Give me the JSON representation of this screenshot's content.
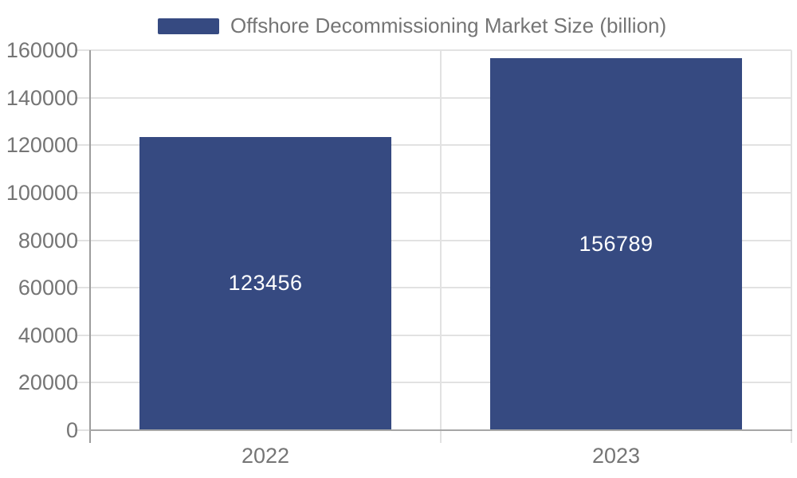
{
  "chart_data": {
    "type": "bar",
    "title": "Offshore Decommissioning Market Size (billion)",
    "categories": [
      "2022",
      "2023"
    ],
    "series": [
      {
        "name": "Offshore Decommissioning Market Size (billion)",
        "values": [
          123456,
          156789
        ]
      }
    ],
    "bar_value_labels": [
      "123456",
      "156789"
    ],
    "xlabel": "",
    "ylabel": "",
    "ylim": [
      0,
      160000
    ],
    "y_ticks": [
      0,
      20000,
      40000,
      60000,
      80000,
      100000,
      120000,
      140000,
      160000
    ],
    "grid": true,
    "legend_position": "top-center",
    "colors": {
      "bar": "#364A81",
      "bar_label_text": "#ffffff",
      "axis_text": "#757575",
      "legend_text": "#757575",
      "grid_line": "#e2e2e2",
      "axis_line": "#9c9c9c",
      "baseline": "#a6a6a6",
      "background": "#ffffff"
    }
  }
}
